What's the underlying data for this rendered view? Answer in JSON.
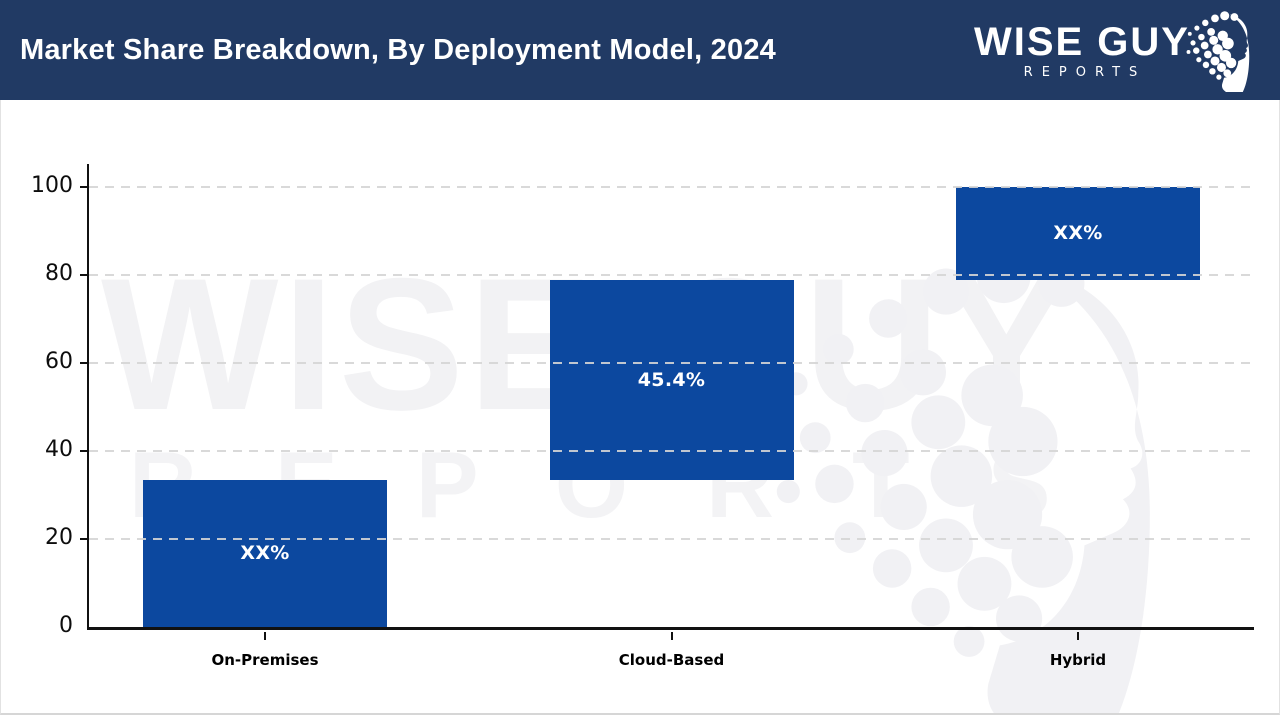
{
  "header": {
    "title": "Market Share Breakdown, By Deployment Model, 2024",
    "logo": {
      "name": "WISE GUY",
      "sub": "REPORTS"
    }
  },
  "watermark": {
    "name": "WISE GUY",
    "sub": "REPORTS"
  },
  "chart_data": {
    "type": "bar",
    "subtype": "floating-waterfall",
    "title": "Market Share Breakdown, By Deployment Model, 2024",
    "categories": [
      "On-Premises",
      "Cloud-Based",
      "Hybrid"
    ],
    "bars": [
      {
        "category": "On-Premises",
        "start": 0,
        "end": 33.5,
        "height_pct": 33.5,
        "label": "XX%"
      },
      {
        "category": "Cloud-Based",
        "start": 33.5,
        "end": 78.9,
        "height_pct": 45.4,
        "label": "45.4%"
      },
      {
        "category": "Hybrid",
        "start": 78.9,
        "end": 100,
        "height_pct": 21.1,
        "label": "XX%"
      }
    ],
    "xlabel": "",
    "ylabel": "",
    "ylim": [
      0,
      105
    ],
    "yticks": [
      0,
      20,
      40,
      60,
      80,
      100
    ],
    "grid": {
      "horizontal": true,
      "style": "dashed"
    },
    "legend": null
  },
  "colors": {
    "header_bg": "#213a64",
    "bar": "#0c489f",
    "grid": "#d5d5d5",
    "axis": "#111111",
    "bar_label_text": "#ffffff",
    "watermark": "#f2f2f4"
  }
}
